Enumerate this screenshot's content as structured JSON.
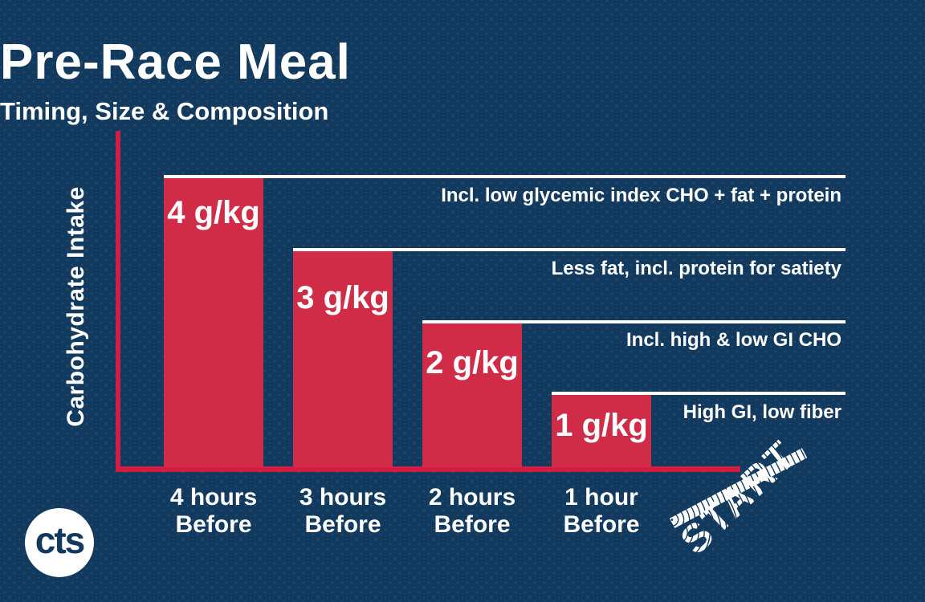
{
  "header": {
    "title": "Pre-Race Meal",
    "subtitle": "Timing, Size & Composition"
  },
  "start_label": "START",
  "logo": {
    "text": "cts"
  },
  "colors": {
    "background": "#12395e",
    "bar": "#d02c47",
    "axis": "#d31c42",
    "text": "#ffffff"
  },
  "chart_data": {
    "type": "bar",
    "title": "Pre-Race Meal",
    "subtitle": "Timing, Size & Composition",
    "ylabel": "Carbohydrate Intake",
    "xlabel": "",
    "unit": "g/kg",
    "ylim": [
      0,
      4.5
    ],
    "grid": false,
    "legend": false,
    "categories": [
      "4 hours Before",
      "3 hours Before",
      "2 hours Before",
      "1 hour Before"
    ],
    "values": [
      4,
      3,
      2,
      1
    ],
    "bars": [
      {
        "value": 4,
        "value_label": "4 g/kg",
        "category_line1": "4 hours",
        "category_line2": "Before",
        "annotation": "Incl. low glycemic index CHO + fat + protein"
      },
      {
        "value": 3,
        "value_label": "3 g/kg",
        "category_line1": "3 hours",
        "category_line2": "Before",
        "annotation": "Less fat, incl. protein for satiety"
      },
      {
        "value": 2,
        "value_label": "2 g/kg",
        "category_line1": "2 hours",
        "category_line2": "Before",
        "annotation": "Incl. high & low GI CHO"
      },
      {
        "value": 1,
        "value_label": "1 g/kg",
        "category_line1": "1 hour",
        "category_line2": "Before",
        "annotation": "High GI, low fiber"
      }
    ]
  }
}
